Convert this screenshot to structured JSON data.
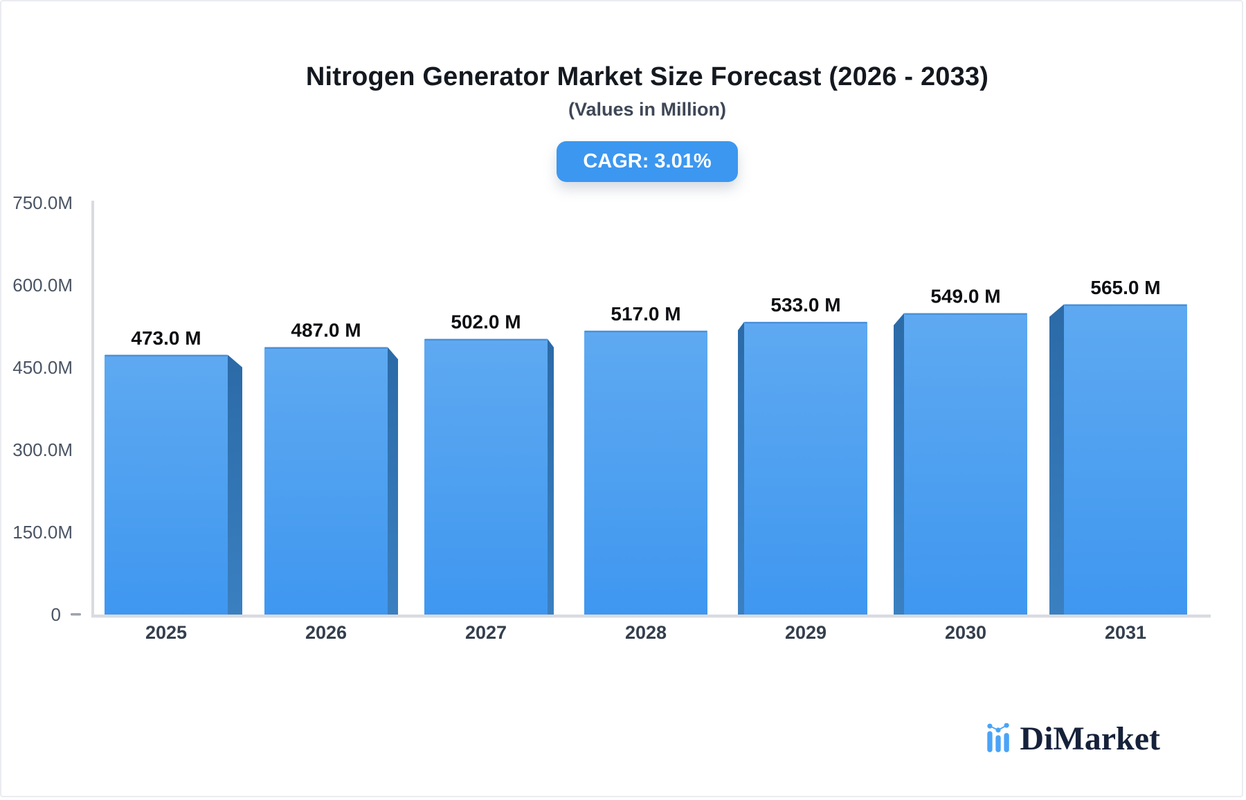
{
  "chart_data": {
    "type": "bar",
    "title": "Nitrogen Generator Market Size Forecast (2026 - 2033)",
    "subtitle": "(Values in Million)",
    "badge_label": "CAGR: 3.01%",
    "categories": [
      "2025",
      "2026",
      "2027",
      "2028",
      "2029",
      "2030",
      "2031"
    ],
    "values": [
      473,
      487,
      502,
      517,
      533,
      549,
      565
    ],
    "value_labels": [
      "473.0 M",
      "487.0 M",
      "502.0 M",
      "517.0 M",
      "533.0 M",
      "549.0 M",
      "565.0 M"
    ],
    "unit": "Million",
    "y_ticks": [
      "750.0M",
      "600.0M",
      "450.0M",
      "300.0M",
      "150.0M",
      "0"
    ],
    "y_tick_values": [
      750,
      600,
      450,
      300,
      150,
      0
    ],
    "ylim": [
      0,
      750
    ],
    "grid": false,
    "legend": false,
    "effect": "3d-perspective-bars",
    "colors": {
      "bar_top": "#5ea9f1",
      "bar_bottom": "#3f97f0",
      "bar_top_edge": "#4a90d6",
      "bar_side_dark": "#2b6aa7",
      "bar_side_light": "#3a80c1",
      "axis_line": "#d9dbe0",
      "tick_dash": "#9ba3ae",
      "tick_label": "#4a5463",
      "category_label": "#343f4d",
      "value_label": "#0d0f12",
      "badge_bg": "#3c97f0",
      "badge_text": "#ffffff"
    }
  },
  "branding": {
    "logo_text": "DiMarket",
    "logo_icon": "mini-bar-chart-icon",
    "logo_text_color": "#16213a",
    "logo_icon_color": "#4aa3f7"
  }
}
